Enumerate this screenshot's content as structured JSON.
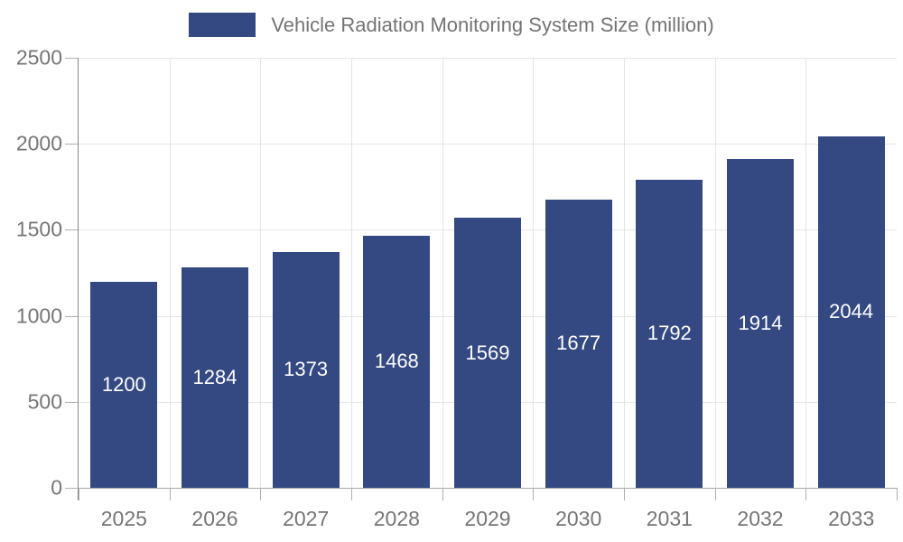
{
  "chart_data": {
    "type": "bar",
    "title": "Vehicle Radiation Monitoring System Size (million)",
    "categories": [
      "2025",
      "2026",
      "2027",
      "2028",
      "2029",
      "2030",
      "2031",
      "2032",
      "2033"
    ],
    "values": [
      1200,
      1284,
      1373,
      1468,
      1569,
      1677,
      1792,
      1914,
      2044
    ],
    "xlabel": "",
    "ylabel": "",
    "ylim": [
      0,
      2500
    ],
    "y_ticks": [
      0,
      500,
      1000,
      1500,
      2000,
      2500
    ],
    "grid": true,
    "legend_position": "top",
    "legend_entries": [
      "Vehicle Radiation Monitoring System Size (million)"
    ],
    "bar_color": "#344982",
    "bar_label_color": "#ffffff",
    "axis_text_color": "#757575"
  }
}
